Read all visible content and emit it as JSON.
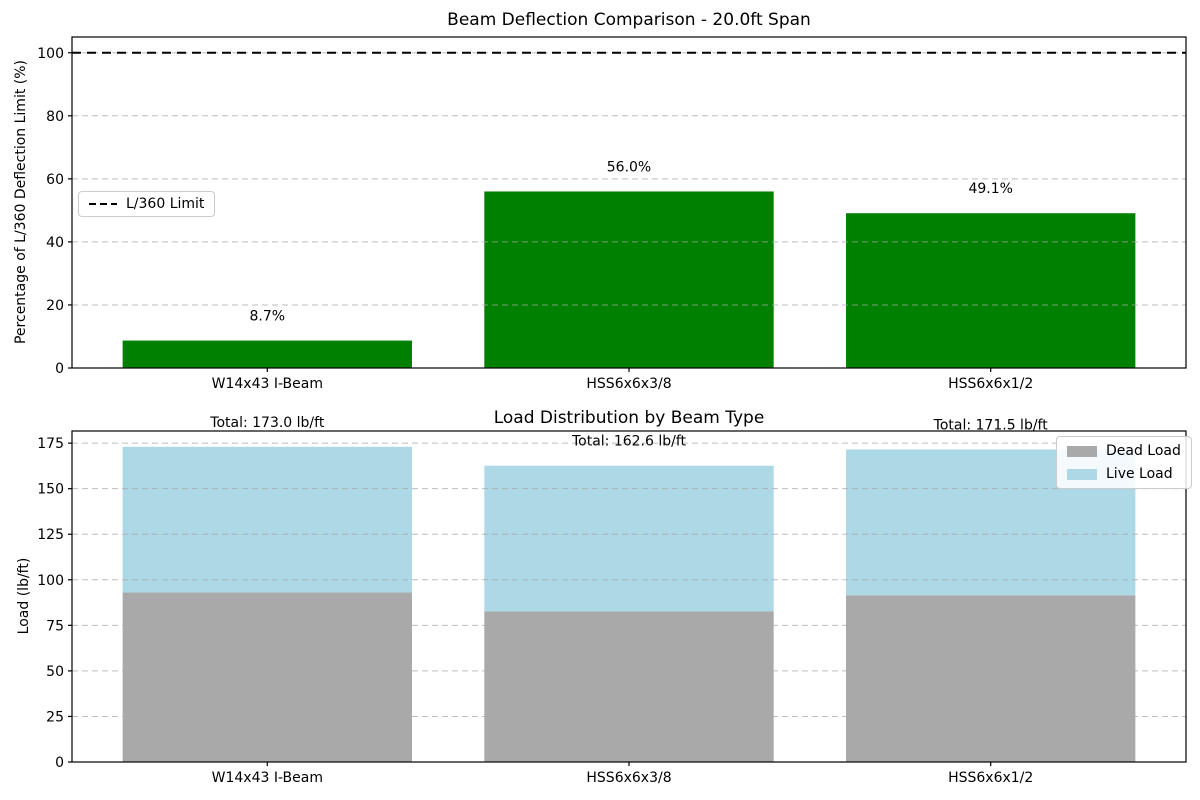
{
  "figure": {
    "background": "#ffffff",
    "grid_color": "#a8a8a8",
    "axis_color": "#000000"
  },
  "chart_data": [
    {
      "type": "bar",
      "title": "Beam Deflection Comparison - 20.0ft Span",
      "xlabel": "",
      "ylabel": "Percentage of L/360 Deflection Limit (%)",
      "categories": [
        "W14x43 I-Beam",
        "HSS6x6x3/8",
        "HSS6x6x1/2"
      ],
      "values": [
        8.7,
        56.0,
        49.1
      ],
      "bar_labels": [
        "8.7%",
        "56.0%",
        "49.1%"
      ],
      "bar_color": "#008000",
      "yticks": [
        0,
        20,
        40,
        60,
        80,
        100
      ],
      "ylim": [
        0,
        105
      ],
      "grid": true,
      "reference_line": {
        "value": 100,
        "label": "L/360 Limit",
        "color": "#000000",
        "style": "dashed"
      },
      "legend": {
        "position": "center-left",
        "items": [
          {
            "label": "L/360 Limit",
            "swatch": "dashed-line",
            "color": "#000000"
          }
        ]
      }
    },
    {
      "type": "stacked-bar",
      "title": "Load Distribution by Beam Type",
      "xlabel": "",
      "ylabel": "Load (lb/ft)",
      "categories": [
        "W14x43 I-Beam",
        "HSS6x6x3/8",
        "HSS6x6x1/2"
      ],
      "series": [
        {
          "name": "Dead Load",
          "values": [
            93.0,
            82.6,
            91.5
          ],
          "color": "#a9a9a9"
        },
        {
          "name": "Live Load",
          "values": [
            80.0,
            80.0,
            80.0
          ],
          "color": "#add8e6"
        }
      ],
      "totals": [
        173.0,
        162.6,
        171.5
      ],
      "total_labels": [
        "Total: 173.0 lb/ft",
        "Total: 162.6 lb/ft",
        "Total: 171.5 lb/ft"
      ],
      "yticks": [
        0,
        25,
        50,
        75,
        100,
        125,
        150,
        175
      ],
      "ylim": [
        0,
        181.65
      ],
      "grid": true,
      "legend": {
        "position": "top-right",
        "items": [
          {
            "label": "Dead Load",
            "swatch": "patch",
            "color": "#a9a9a9"
          },
          {
            "label": "Live Load",
            "swatch": "patch",
            "color": "#add8e6"
          }
        ]
      }
    }
  ]
}
